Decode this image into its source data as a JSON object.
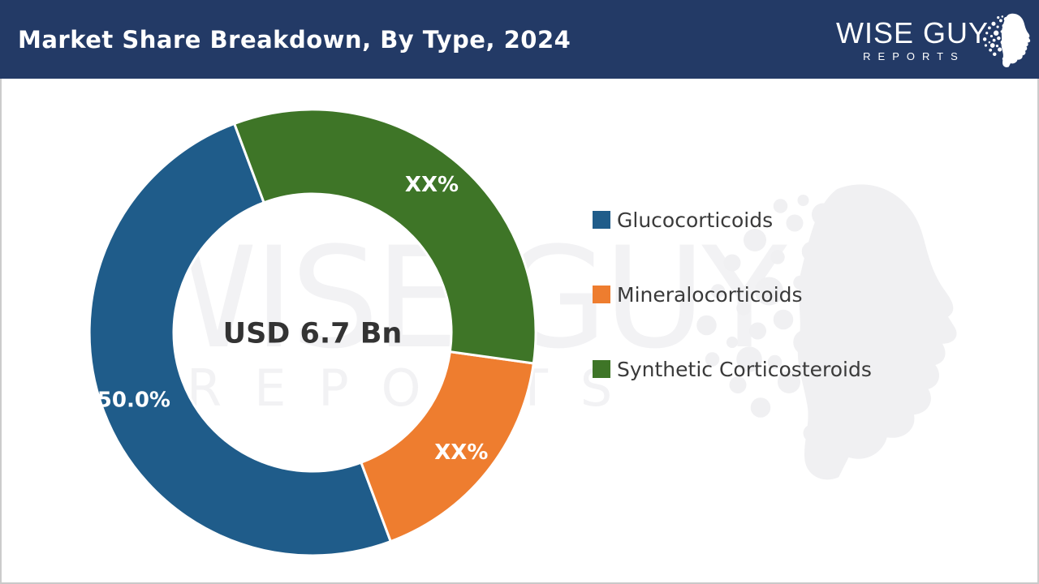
{
  "header": {
    "title": "Market Share Breakdown, By Type, 2024",
    "logo": {
      "name": "WISE GUY",
      "sub": "REPORTS"
    }
  },
  "chart_data": {
    "type": "pie",
    "subtype": "donut",
    "title": "Market Share Breakdown, By Type, 2024",
    "center_label": "USD 6.7 Bn",
    "start_angle_deg": 110.5,
    "direction": "counterclockwise",
    "inner_radius_ratio": 0.62,
    "legend_position": "right",
    "segments": [
      {
        "name": "Glucocorticoids",
        "slice_label": "50.0%",
        "share_pct": 50.0,
        "color": "#1f5c8a"
      },
      {
        "name": "Mineralocorticoids",
        "slice_label": "XX%",
        "share_pct": 17.1,
        "color": "#ee7d2f"
      },
      {
        "name": "Synthetic Corticosteroids",
        "slice_label": "XX%",
        "share_pct": 32.9,
        "color": "#3e7527"
      }
    ]
  },
  "watermark": {
    "line1": "WISE GUY",
    "line2": "REPORTS"
  },
  "colors": {
    "header_bg": "#233a66",
    "watermark": "#f2f2f4",
    "watermark_face": "#f0f0f2",
    "center_text": "#333333",
    "legend_text": "#3a3a3a",
    "frame_border": "#cccccc"
  }
}
